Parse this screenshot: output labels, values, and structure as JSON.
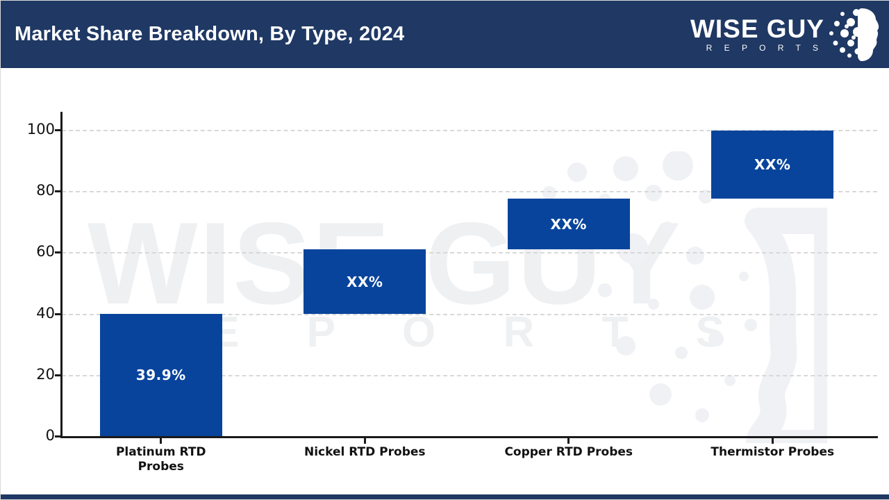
{
  "header": {
    "title": "Market Share Breakdown, By Type, 2024",
    "brand": {
      "line1": "WISE GUY",
      "line2": "R E P O R T S"
    }
  },
  "watermark": {
    "line1": "WISE GUY",
    "line2": "R E P O R T S"
  },
  "chart_data": {
    "type": "bar",
    "subtype": "waterfall",
    "title": "Market Share Breakdown, By Type, 2024",
    "categories": [
      "Platinum RTD Probes",
      "Nickel RTD Probes",
      "Copper RTD Probes",
      "Thermistor Probes"
    ],
    "x_tick_labels": [
      "Platinum RTD\nProbes",
      "Nickel RTD Probes",
      "Copper RTD Probes",
      "Thermistor Probes"
    ],
    "segments": [
      {
        "category": "Platinum RTD Probes",
        "start": 0,
        "end": 39.9,
        "label": "39.9%"
      },
      {
        "category": "Nickel RTD Probes",
        "start": 39.9,
        "end": 61.0,
        "label": "XX%"
      },
      {
        "category": "Copper RTD Probes",
        "start": 61.0,
        "end": 77.5,
        "label": "XX%"
      },
      {
        "category": "Thermistor Probes",
        "start": 77.5,
        "end": 99.8,
        "label": "XX%"
      }
    ],
    "value_labels": [
      "39.9%",
      "XX%",
      "XX%",
      "XX%"
    ],
    "yticks": [
      0,
      20,
      40,
      60,
      80,
      100
    ],
    "ylim": [
      0,
      106
    ],
    "ylabel": "",
    "xlabel": "",
    "grid": {
      "axis": "y",
      "style": "dashed",
      "color": "#d8d8d8"
    },
    "legend": "none",
    "bar_color": "#08449c",
    "header_color": "#1f3864"
  }
}
